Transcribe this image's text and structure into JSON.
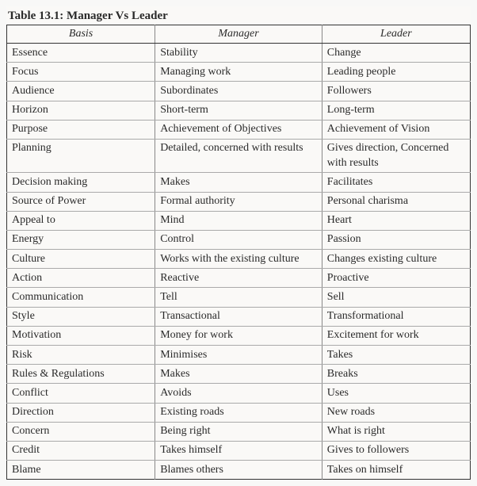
{
  "title": "Table 13.1: Manager Vs Leader",
  "columns": [
    "Basis",
    "Manager",
    "Leader"
  ],
  "rows": [
    [
      "Essence",
      "Stability",
      "Change"
    ],
    [
      "Focus",
      "Managing work",
      "Leading people"
    ],
    [
      "Audience",
      "Subordinates",
      "Followers"
    ],
    [
      "Horizon",
      "Short-term",
      "Long-term"
    ],
    [
      "Purpose",
      "Achievement of Objectives",
      "Achievement of Vision"
    ],
    [
      "Planning",
      "Detailed, concerned with results",
      "Gives direction, Concerned with results"
    ],
    [
      "Decision making",
      "Makes",
      "Facilitates"
    ],
    [
      "Source of Power",
      "Formal authority",
      "Personal charisma"
    ],
    [
      "Appeal to",
      "Mind",
      "Heart"
    ],
    [
      "Energy",
      "Control",
      "Passion"
    ],
    [
      "Culture",
      "Works with the existing culture",
      "Changes existing culture"
    ],
    [
      "Action",
      "Reactive",
      "Proactive"
    ],
    [
      "Communication",
      "Tell",
      "Sell"
    ],
    [
      "Style",
      "Transactional",
      "Transformational"
    ],
    [
      "Motivation",
      "Money for work",
      "Excitement for work"
    ],
    [
      "Risk",
      "Minimises",
      "Takes"
    ],
    [
      "Rules & Regulations",
      "Makes",
      "Breaks"
    ],
    [
      "Conflict",
      "Avoids",
      "Uses"
    ],
    [
      "Direction",
      "Existing roads",
      "New roads"
    ],
    [
      "Concern",
      "Being right",
      "What is right"
    ],
    [
      "Credit",
      "Takes himself",
      "Gives to followers"
    ],
    [
      "Blame",
      "Blames others",
      "Takes on himself"
    ]
  ],
  "style": {
    "background_color": "#faf9f7",
    "border_color": "#333333",
    "row_border_color": "#aaaaaa",
    "text_color": "#2a2a2a",
    "title_fontsize": 15,
    "cell_fontsize": 14,
    "font_family": "Georgia, serif"
  }
}
